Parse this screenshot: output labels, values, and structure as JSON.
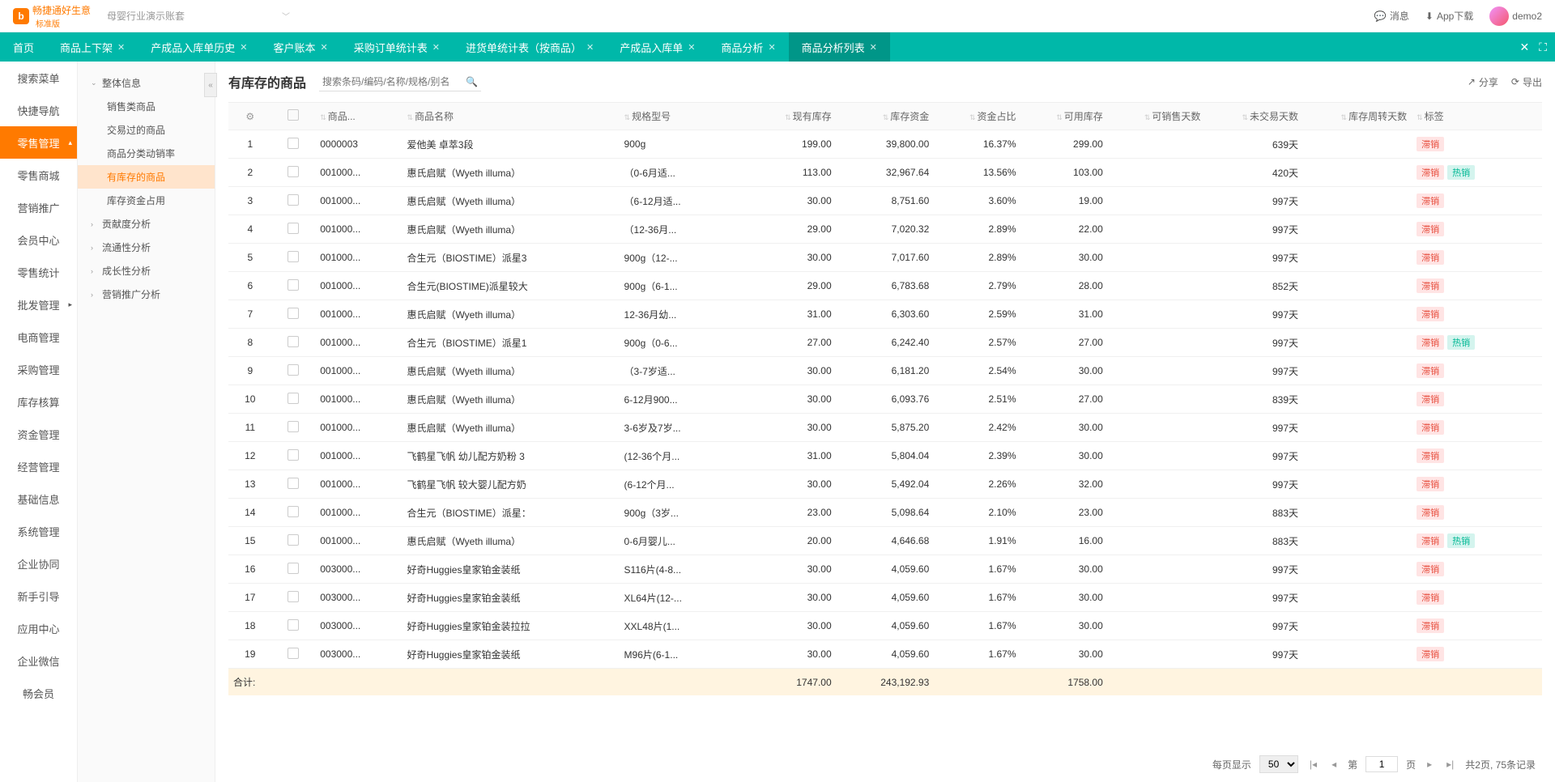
{
  "header": {
    "logo_text": "畅捷通好生意",
    "logo_sub": "标准版",
    "account_name": "母婴行业演示账套",
    "msg_label": "消息",
    "app_label": "App下载",
    "user_name": "demo2"
  },
  "tabs": [
    {
      "label": "首页",
      "closable": false,
      "active": false
    },
    {
      "label": "商品上下架",
      "closable": true,
      "active": false
    },
    {
      "label": "产成品入库单历史",
      "closable": true,
      "active": false
    },
    {
      "label": "客户账本",
      "closable": true,
      "active": false
    },
    {
      "label": "采购订单统计表",
      "closable": true,
      "active": false
    },
    {
      "label": "进货单统计表（按商品）",
      "closable": true,
      "active": false
    },
    {
      "label": "产成品入库单",
      "closable": true,
      "active": false
    },
    {
      "label": "商品分析",
      "closable": true,
      "active": false
    },
    {
      "label": "商品分析列表",
      "closable": true,
      "active": true
    }
  ],
  "left_menu": [
    {
      "label": "搜索菜单",
      "active": false
    },
    {
      "label": "快捷导航",
      "active": false
    },
    {
      "label": "零售管理",
      "active": true,
      "expandable": true
    },
    {
      "label": "零售商城",
      "active": false
    },
    {
      "label": "营销推广",
      "active": false
    },
    {
      "label": "会员中心",
      "active": false
    },
    {
      "label": "零售统计",
      "active": false
    },
    {
      "label": "批发管理",
      "active": false,
      "expandable": true
    },
    {
      "label": "电商管理",
      "active": false
    },
    {
      "label": "采购管理",
      "active": false
    },
    {
      "label": "库存核算",
      "active": false
    },
    {
      "label": "资金管理",
      "active": false
    },
    {
      "label": "经营管理",
      "active": false
    },
    {
      "label": "基础信息",
      "active": false
    },
    {
      "label": "系统管理",
      "active": false
    },
    {
      "label": "企业协同",
      "active": false
    },
    {
      "label": "新手引导",
      "active": false
    },
    {
      "label": "应用中心",
      "active": false
    },
    {
      "label": "企业微信",
      "active": false
    },
    {
      "label": "畅会员",
      "active": false
    }
  ],
  "tree": {
    "root_label": "整体信息",
    "groups": [
      {
        "label": "销售类商品"
      },
      {
        "label": "交易过的商品"
      },
      {
        "label": "商品分类动销率"
      },
      {
        "label": "有库存的商品",
        "active": true
      },
      {
        "label": "库存资金占用"
      }
    ],
    "sections": [
      {
        "label": "贡献度分析"
      },
      {
        "label": "流通性分析"
      },
      {
        "label": "成长性分析"
      },
      {
        "label": "营销推广分析"
      }
    ]
  },
  "page": {
    "title": "有库存的商品",
    "search_placeholder": "搜索条码/编码/名称/规格/别名",
    "share_label": "分享",
    "export_label": "导出"
  },
  "table": {
    "columns": [
      "",
      "",
      "商品...",
      "商品名称",
      "规格型号",
      "现有库存",
      "库存资金",
      "资金占比",
      "可用库存",
      "可销售天数",
      "未交易天数",
      "库存周转天数",
      "标签"
    ],
    "col_widths": [
      "40px",
      "40px",
      "80px",
      "200px",
      "120px",
      "80px",
      "90px",
      "80px",
      "80px",
      "90px",
      "90px",
      "100px",
      "120px"
    ],
    "col_align": [
      "center",
      "center",
      "left",
      "left",
      "left",
      "right",
      "right",
      "right",
      "right",
      "right",
      "right",
      "right",
      "left"
    ],
    "rows": [
      {
        "idx": "1",
        "code": "0000003",
        "name": "爱他美 卓萃3段",
        "spec": "900g",
        "stock": "199.00",
        "fund": "39,800.00",
        "pct": "16.37%",
        "avail": "299.00",
        "sale_days": "",
        "notrade": "639天",
        "turnover": "",
        "tags": [
          "滞销"
        ]
      },
      {
        "idx": "2",
        "code": "001000...",
        "name": "惠氏启赋（Wyeth illuma）",
        "spec": "（0-6月适...",
        "stock": "113.00",
        "fund": "32,967.64",
        "pct": "13.56%",
        "avail": "103.00",
        "sale_days": "",
        "notrade": "420天",
        "turnover": "",
        "tags": [
          "滞销",
          "热销"
        ]
      },
      {
        "idx": "3",
        "code": "001000...",
        "name": "惠氏启赋（Wyeth illuma）",
        "spec": "（6-12月适...",
        "stock": "30.00",
        "fund": "8,751.60",
        "pct": "3.60%",
        "avail": "19.00",
        "sale_days": "",
        "notrade": "997天",
        "turnover": "",
        "tags": [
          "滞销"
        ]
      },
      {
        "idx": "4",
        "code": "001000...",
        "name": "惠氏启赋（Wyeth illuma）",
        "spec": "（12-36月...",
        "stock": "29.00",
        "fund": "7,020.32",
        "pct": "2.89%",
        "avail": "22.00",
        "sale_days": "",
        "notrade": "997天",
        "turnover": "",
        "tags": [
          "滞销"
        ]
      },
      {
        "idx": "5",
        "code": "001000...",
        "name": "合生元（BIOSTIME）派星3",
        "spec": "900g（12-...",
        "stock": "30.00",
        "fund": "7,017.60",
        "pct": "2.89%",
        "avail": "30.00",
        "sale_days": "",
        "notrade": "997天",
        "turnover": "",
        "tags": [
          "滞销"
        ]
      },
      {
        "idx": "6",
        "code": "001000...",
        "name": "合生元(BIOSTIME)派星较大",
        "spec": "900g（6-1...",
        "stock": "29.00",
        "fund": "6,783.68",
        "pct": "2.79%",
        "avail": "28.00",
        "sale_days": "",
        "notrade": "852天",
        "turnover": "",
        "tags": [
          "滞销"
        ]
      },
      {
        "idx": "7",
        "code": "001000...",
        "name": "惠氏启赋（Wyeth illuma）",
        "spec": "12-36月幼...",
        "stock": "31.00",
        "fund": "6,303.60",
        "pct": "2.59%",
        "avail": "31.00",
        "sale_days": "",
        "notrade": "997天",
        "turnover": "",
        "tags": [
          "滞销"
        ]
      },
      {
        "idx": "8",
        "code": "001000...",
        "name": "合生元（BIOSTIME）派星1",
        "spec": "900g（0-6...",
        "stock": "27.00",
        "fund": "6,242.40",
        "pct": "2.57%",
        "avail": "27.00",
        "sale_days": "",
        "notrade": "997天",
        "turnover": "",
        "tags": [
          "滞销",
          "热销"
        ]
      },
      {
        "idx": "9",
        "code": "001000...",
        "name": "惠氏启赋（Wyeth illuma）",
        "spec": "（3-7岁适...",
        "stock": "30.00",
        "fund": "6,181.20",
        "pct": "2.54%",
        "avail": "30.00",
        "sale_days": "",
        "notrade": "997天",
        "turnover": "",
        "tags": [
          "滞销"
        ]
      },
      {
        "idx": "10",
        "code": "001000...",
        "name": "惠氏启赋（Wyeth illuma）",
        "spec": "6-12月900...",
        "stock": "30.00",
        "fund": "6,093.76",
        "pct": "2.51%",
        "avail": "27.00",
        "sale_days": "",
        "notrade": "839天",
        "turnover": "",
        "tags": [
          "滞销"
        ]
      },
      {
        "idx": "11",
        "code": "001000...",
        "name": "惠氏启赋（Wyeth illuma）",
        "spec": "3-6岁及7岁...",
        "stock": "30.00",
        "fund": "5,875.20",
        "pct": "2.42%",
        "avail": "30.00",
        "sale_days": "",
        "notrade": "997天",
        "turnover": "",
        "tags": [
          "滞销"
        ]
      },
      {
        "idx": "12",
        "code": "001000...",
        "name": "飞鹤星飞帆 幼儿配方奶粉 3",
        "spec": "(12-36个月...",
        "stock": "31.00",
        "fund": "5,804.04",
        "pct": "2.39%",
        "avail": "30.00",
        "sale_days": "",
        "notrade": "997天",
        "turnover": "",
        "tags": [
          "滞销"
        ]
      },
      {
        "idx": "13",
        "code": "001000...",
        "name": "飞鹤星飞帆 较大婴儿配方奶",
        "spec": "(6-12个月...",
        "stock": "30.00",
        "fund": "5,492.04",
        "pct": "2.26%",
        "avail": "32.00",
        "sale_days": "",
        "notrade": "997天",
        "turnover": "",
        "tags": [
          "滞销"
        ]
      },
      {
        "idx": "14",
        "code": "001000...",
        "name": "合生元（BIOSTIME）派星：",
        "spec": "900g（3岁...",
        "stock": "23.00",
        "fund": "5,098.64",
        "pct": "2.10%",
        "avail": "23.00",
        "sale_days": "",
        "notrade": "883天",
        "turnover": "",
        "tags": [
          "滞销"
        ]
      },
      {
        "idx": "15",
        "code": "001000...",
        "name": "惠氏启赋（Wyeth illuma）",
        "spec": "0-6月婴儿...",
        "stock": "20.00",
        "fund": "4,646.68",
        "pct": "1.91%",
        "avail": "16.00",
        "sale_days": "",
        "notrade": "883天",
        "turnover": "",
        "tags": [
          "滞销",
          "热销"
        ]
      },
      {
        "idx": "16",
        "code": "003000...",
        "name": "好奇Huggies皇家铂金装纸",
        "spec": "S116片(4-8...",
        "stock": "30.00",
        "fund": "4,059.60",
        "pct": "1.67%",
        "avail": "30.00",
        "sale_days": "",
        "notrade": "997天",
        "turnover": "",
        "tags": [
          "滞销"
        ]
      },
      {
        "idx": "17",
        "code": "003000...",
        "name": "好奇Huggies皇家铂金装纸",
        "spec": "XL64片(12-...",
        "stock": "30.00",
        "fund": "4,059.60",
        "pct": "1.67%",
        "avail": "30.00",
        "sale_days": "",
        "notrade": "997天",
        "turnover": "",
        "tags": [
          "滞销"
        ]
      },
      {
        "idx": "18",
        "code": "003000...",
        "name": "好奇Huggies皇家铂金装拉拉",
        "spec": "XXL48片(1...",
        "stock": "30.00",
        "fund": "4,059.60",
        "pct": "1.67%",
        "avail": "30.00",
        "sale_days": "",
        "notrade": "997天",
        "turnover": "",
        "tags": [
          "滞销"
        ]
      },
      {
        "idx": "19",
        "code": "003000...",
        "name": "好奇Huggies皇家铂金装纸",
        "spec": "M96片(6-1...",
        "stock": "30.00",
        "fund": "4,059.60",
        "pct": "1.67%",
        "avail": "30.00",
        "sale_days": "",
        "notrade": "997天",
        "turnover": "",
        "tags": [
          "滞销"
        ]
      }
    ],
    "total_label": "合计:",
    "total_stock": "1747.00",
    "total_fund": "243,192.93",
    "total_avail": "1758.00"
  },
  "pager": {
    "per_page_label": "每页显示",
    "per_page_value": "50",
    "page_label_prefix": "第",
    "page_value": "1",
    "page_label_suffix": "页",
    "summary": "共2页, 75条记录"
  },
  "colors": {
    "primary": "#00b8a9",
    "accent": "#ff7a00",
    "tag_red_bg": "#ffe4e4",
    "tag_red_fg": "#e74c3c",
    "tag_green_bg": "#d4f4ee",
    "tag_green_fg": "#00b894"
  }
}
